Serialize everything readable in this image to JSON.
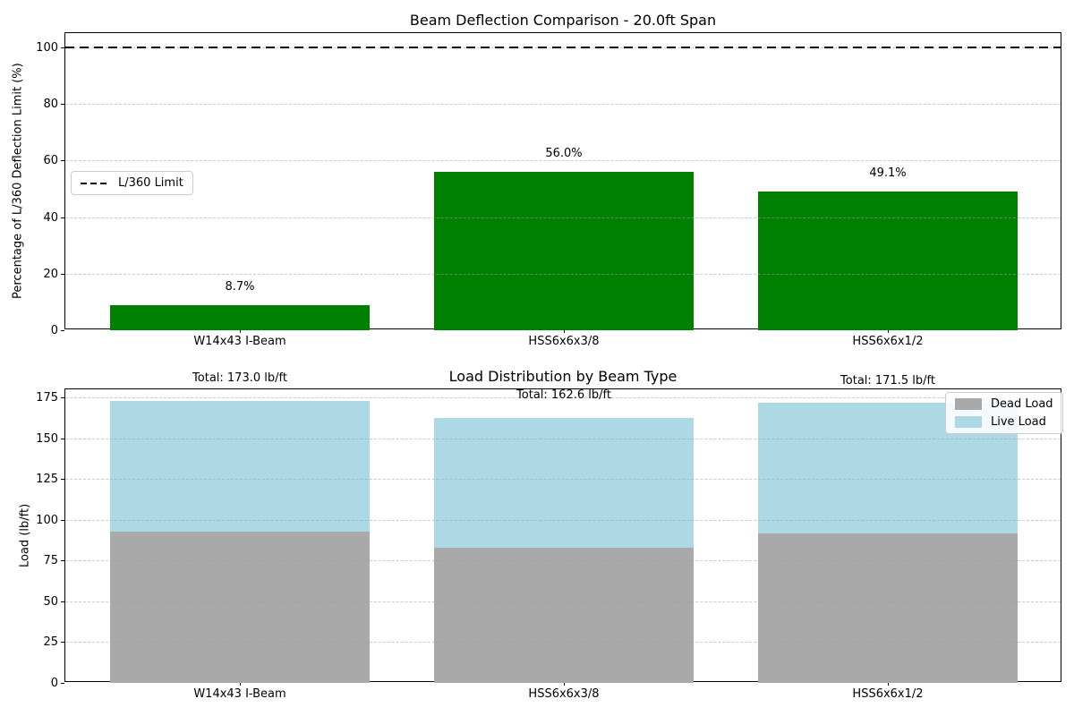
{
  "colors": {
    "deflection_bar": "#008000",
    "dead_load": "#a9a9a9",
    "live_load": "#add8e6",
    "limit_line": "#000000",
    "grid": "#c8c8c8"
  },
  "chart_data": [
    {
      "type": "bar",
      "title": "Beam Deflection Comparison - 20.0ft Span",
      "xlabel": "",
      "ylabel": "Percentage of L/360 Deflection Limit (%)",
      "categories": [
        "W14x43 I-Beam",
        "HSS6x6x3/8",
        "HSS6x6x1/2"
      ],
      "values": [
        8.7,
        56.0,
        49.1
      ],
      "bar_labels": [
        "8.7%",
        "56.0%",
        "49.1%"
      ],
      "bar_color": "#008000",
      "yticks": [
        0,
        20,
        40,
        60,
        80,
        100
      ],
      "ylim": [
        0,
        105
      ],
      "grid": true,
      "limit_line": {
        "value": 100,
        "label": "L/360 Limit",
        "style": "dashed",
        "color": "#000000"
      },
      "legend": {
        "position": "center-left",
        "entries": [
          {
            "label": "L/360 Limit",
            "sample": "dashed-line",
            "color": "#000000"
          }
        ]
      }
    },
    {
      "type": "bar",
      "stacked": true,
      "title": "Load Distribution by Beam Type",
      "xlabel": "",
      "ylabel": "Load (lb/ft)",
      "categories": [
        "W14x43 I-Beam",
        "HSS6x6x3/8",
        "HSS6x6x1/2"
      ],
      "series": [
        {
          "name": "Dead Load",
          "color": "#a9a9a9",
          "values": [
            93.0,
            82.6,
            91.5
          ]
        },
        {
          "name": "Live Load",
          "color": "#add8e6",
          "values": [
            80.0,
            80.0,
            80.0
          ]
        }
      ],
      "totals": [
        173.0,
        162.6,
        171.5
      ],
      "total_labels": [
        "Total: 173.0 lb/ft",
        "Total: 162.6 lb/ft",
        "Total: 171.5 lb/ft"
      ],
      "yticks": [
        0,
        25,
        50,
        75,
        100,
        125,
        150,
        175
      ],
      "ylim": [
        0,
        180
      ],
      "grid": true,
      "legend": {
        "position": "upper-right",
        "entries": [
          {
            "label": "Dead Load",
            "sample": "patch",
            "color": "#a9a9a9"
          },
          {
            "label": "Live Load",
            "sample": "patch",
            "color": "#add8e6"
          }
        ]
      }
    }
  ]
}
